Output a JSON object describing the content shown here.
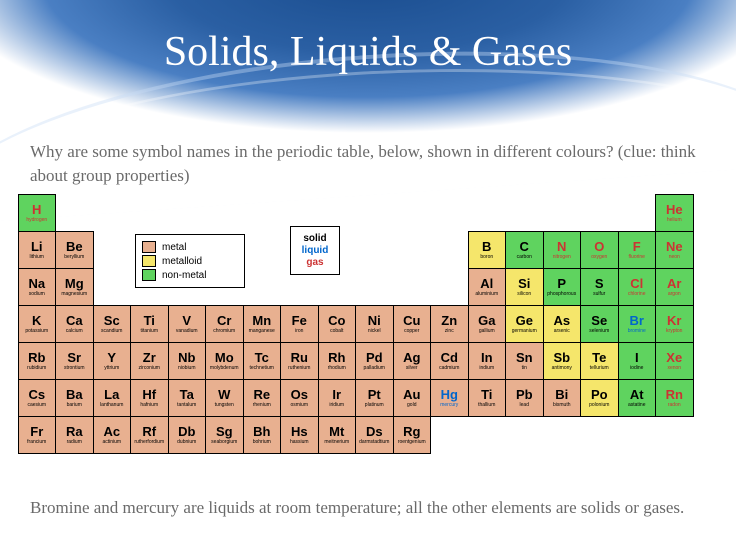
{
  "title": "Solids, Liquids & Gases",
  "question": "Why are some symbol names in the periodic table, below, shown in different colours? (clue: think about group properties)",
  "conclusion": "Bromine and mercury are liquids at room temperature; all the other elements are solids or gases.",
  "colors": {
    "metal": "#e8b090",
    "metalloid": "#f5e66b",
    "nonmetal": "#5fd35f",
    "solid": "#000000",
    "liquid": "#0066cc",
    "gas": "#cc3333",
    "header_bg": "#1a4d8f",
    "text": "#6a6a6a"
  },
  "legend_category": {
    "items": [
      {
        "color": "#e8b090",
        "label": "metal"
      },
      {
        "color": "#f5e66b",
        "label": "metalloid"
      },
      {
        "color": "#5fd35f",
        "label": "non-metal"
      }
    ]
  },
  "legend_state": {
    "items": [
      {
        "label": "solid",
        "color": "#000000"
      },
      {
        "label": "liquid",
        "color": "#0066cc"
      },
      {
        "label": "gas",
        "color": "#cc3333"
      }
    ]
  },
  "rows": [
    [
      {
        "sym": "H",
        "name": "hydrogen",
        "cat": "nonmetal",
        "state": "gas"
      },
      null,
      null,
      null,
      null,
      null,
      null,
      null,
      null,
      null,
      null,
      null,
      null,
      null,
      null,
      null,
      null,
      {
        "sym": "He",
        "name": "helium",
        "cat": "nonmetal",
        "state": "gas"
      }
    ],
    [
      {
        "sym": "Li",
        "name": "lithium",
        "cat": "metal",
        "state": "solid"
      },
      {
        "sym": "Be",
        "name": "beryllium",
        "cat": "metal",
        "state": "solid"
      },
      null,
      null,
      null,
      null,
      null,
      null,
      null,
      null,
      null,
      null,
      {
        "sym": "B",
        "name": "boron",
        "cat": "metalloid",
        "state": "solid"
      },
      {
        "sym": "C",
        "name": "carbon",
        "cat": "nonmetal",
        "state": "solid"
      },
      {
        "sym": "N",
        "name": "nitrogen",
        "cat": "nonmetal",
        "state": "gas"
      },
      {
        "sym": "O",
        "name": "oxygen",
        "cat": "nonmetal",
        "state": "gas"
      },
      {
        "sym": "F",
        "name": "fluorine",
        "cat": "nonmetal",
        "state": "gas"
      },
      {
        "sym": "Ne",
        "name": "neon",
        "cat": "nonmetal",
        "state": "gas"
      }
    ],
    [
      {
        "sym": "Na",
        "name": "sodium",
        "cat": "metal",
        "state": "solid"
      },
      {
        "sym": "Mg",
        "name": "magnesium",
        "cat": "metal",
        "state": "solid"
      },
      null,
      null,
      null,
      null,
      null,
      null,
      null,
      null,
      null,
      null,
      {
        "sym": "Al",
        "name": "aluminium",
        "cat": "metal",
        "state": "solid"
      },
      {
        "sym": "Si",
        "name": "silicon",
        "cat": "metalloid",
        "state": "solid"
      },
      {
        "sym": "P",
        "name": "phosphorous",
        "cat": "nonmetal",
        "state": "solid"
      },
      {
        "sym": "S",
        "name": "sulfur",
        "cat": "nonmetal",
        "state": "solid"
      },
      {
        "sym": "Cl",
        "name": "chlorine",
        "cat": "nonmetal",
        "state": "gas"
      },
      {
        "sym": "Ar",
        "name": "argon",
        "cat": "nonmetal",
        "state": "gas"
      }
    ],
    [
      {
        "sym": "K",
        "name": "potassium",
        "cat": "metal",
        "state": "solid"
      },
      {
        "sym": "Ca",
        "name": "calcium",
        "cat": "metal",
        "state": "solid"
      },
      {
        "sym": "Sc",
        "name": "scandium",
        "cat": "metal",
        "state": "solid"
      },
      {
        "sym": "Ti",
        "name": "titanium",
        "cat": "metal",
        "state": "solid"
      },
      {
        "sym": "V",
        "name": "vanadium",
        "cat": "metal",
        "state": "solid"
      },
      {
        "sym": "Cr",
        "name": "chromium",
        "cat": "metal",
        "state": "solid"
      },
      {
        "sym": "Mn",
        "name": "manganese",
        "cat": "metal",
        "state": "solid"
      },
      {
        "sym": "Fe",
        "name": "iron",
        "cat": "metal",
        "state": "solid"
      },
      {
        "sym": "Co",
        "name": "cobalt",
        "cat": "metal",
        "state": "solid"
      },
      {
        "sym": "Ni",
        "name": "nickel",
        "cat": "metal",
        "state": "solid"
      },
      {
        "sym": "Cu",
        "name": "copper",
        "cat": "metal",
        "state": "solid"
      },
      {
        "sym": "Zn",
        "name": "zinc",
        "cat": "metal",
        "state": "solid"
      },
      {
        "sym": "Ga",
        "name": "gallium",
        "cat": "metal",
        "state": "solid"
      },
      {
        "sym": "Ge",
        "name": "germanium",
        "cat": "metalloid",
        "state": "solid"
      },
      {
        "sym": "As",
        "name": "arsenic",
        "cat": "metalloid",
        "state": "solid"
      },
      {
        "sym": "Se",
        "name": "selenium",
        "cat": "nonmetal",
        "state": "solid"
      },
      {
        "sym": "Br",
        "name": "bromine",
        "cat": "nonmetal",
        "state": "liquid"
      },
      {
        "sym": "Kr",
        "name": "krypton",
        "cat": "nonmetal",
        "state": "gas"
      }
    ],
    [
      {
        "sym": "Rb",
        "name": "rubidium",
        "cat": "metal",
        "state": "solid"
      },
      {
        "sym": "Sr",
        "name": "strontium",
        "cat": "metal",
        "state": "solid"
      },
      {
        "sym": "Y",
        "name": "yttrium",
        "cat": "metal",
        "state": "solid"
      },
      {
        "sym": "Zr",
        "name": "zirconium",
        "cat": "metal",
        "state": "solid"
      },
      {
        "sym": "Nb",
        "name": "niobium",
        "cat": "metal",
        "state": "solid"
      },
      {
        "sym": "Mo",
        "name": "molybdenum",
        "cat": "metal",
        "state": "solid"
      },
      {
        "sym": "Tc",
        "name": "technetium",
        "cat": "metal",
        "state": "solid"
      },
      {
        "sym": "Ru",
        "name": "ruthenium",
        "cat": "metal",
        "state": "solid"
      },
      {
        "sym": "Rh",
        "name": "rhodium",
        "cat": "metal",
        "state": "solid"
      },
      {
        "sym": "Pd",
        "name": "palladium",
        "cat": "metal",
        "state": "solid"
      },
      {
        "sym": "Ag",
        "name": "silver",
        "cat": "metal",
        "state": "solid"
      },
      {
        "sym": "Cd",
        "name": "cadmium",
        "cat": "metal",
        "state": "solid"
      },
      {
        "sym": "In",
        "name": "indium",
        "cat": "metal",
        "state": "solid"
      },
      {
        "sym": "Sn",
        "name": "tin",
        "cat": "metal",
        "state": "solid"
      },
      {
        "sym": "Sb",
        "name": "antimony",
        "cat": "metalloid",
        "state": "solid"
      },
      {
        "sym": "Te",
        "name": "tellurium",
        "cat": "metalloid",
        "state": "solid"
      },
      {
        "sym": "I",
        "name": "iodine",
        "cat": "nonmetal",
        "state": "solid"
      },
      {
        "sym": "Xe",
        "name": "xenon",
        "cat": "nonmetal",
        "state": "gas"
      }
    ],
    [
      {
        "sym": "Cs",
        "name": "caesium",
        "cat": "metal",
        "state": "solid"
      },
      {
        "sym": "Ba",
        "name": "barium",
        "cat": "metal",
        "state": "solid"
      },
      {
        "sym": "La",
        "name": "lanthanum",
        "cat": "metal",
        "state": "solid"
      },
      {
        "sym": "Hf",
        "name": "hafnium",
        "cat": "metal",
        "state": "solid"
      },
      {
        "sym": "Ta",
        "name": "tantalum",
        "cat": "metal",
        "state": "solid"
      },
      {
        "sym": "W",
        "name": "tungsten",
        "cat": "metal",
        "state": "solid"
      },
      {
        "sym": "Re",
        "name": "rhenium",
        "cat": "metal",
        "state": "solid"
      },
      {
        "sym": "Os",
        "name": "osmium",
        "cat": "metal",
        "state": "solid"
      },
      {
        "sym": "Ir",
        "name": "iridium",
        "cat": "metal",
        "state": "solid"
      },
      {
        "sym": "Pt",
        "name": "platinum",
        "cat": "metal",
        "state": "solid"
      },
      {
        "sym": "Au",
        "name": "gold",
        "cat": "metal",
        "state": "solid"
      },
      {
        "sym": "Hg",
        "name": "mercury",
        "cat": "metal",
        "state": "liquid"
      },
      {
        "sym": "Ti",
        "name": "thallium",
        "cat": "metal",
        "state": "solid"
      },
      {
        "sym": "Pb",
        "name": "lead",
        "cat": "metal",
        "state": "solid"
      },
      {
        "sym": "Bi",
        "name": "bismuth",
        "cat": "metal",
        "state": "solid"
      },
      {
        "sym": "Po",
        "name": "polonium",
        "cat": "metalloid",
        "state": "solid"
      },
      {
        "sym": "At",
        "name": "astatine",
        "cat": "nonmetal",
        "state": "solid"
      },
      {
        "sym": "Rn",
        "name": "radon",
        "cat": "nonmetal",
        "state": "gas"
      }
    ],
    [
      {
        "sym": "Fr",
        "name": "francium",
        "cat": "metal",
        "state": "solid"
      },
      {
        "sym": "Ra",
        "name": "radium",
        "cat": "metal",
        "state": "solid"
      },
      {
        "sym": "Ac",
        "name": "actinium",
        "cat": "metal",
        "state": "solid"
      },
      {
        "sym": "Rf",
        "name": "rutherfordium",
        "cat": "metal",
        "state": "solid"
      },
      {
        "sym": "Db",
        "name": "dubnium",
        "cat": "metal",
        "state": "solid"
      },
      {
        "sym": "Sg",
        "name": "seaborgium",
        "cat": "metal",
        "state": "solid"
      },
      {
        "sym": "Bh",
        "name": "bohrium",
        "cat": "metal",
        "state": "solid"
      },
      {
        "sym": "Hs",
        "name": "hassium",
        "cat": "metal",
        "state": "solid"
      },
      {
        "sym": "Mt",
        "name": "meitnerium",
        "cat": "metal",
        "state": "solid"
      },
      {
        "sym": "Ds",
        "name": "darmstadtium",
        "cat": "metal",
        "state": "solid"
      },
      {
        "sym": "Rg",
        "name": "roentgenium",
        "cat": "metal",
        "state": "solid"
      },
      null,
      null,
      null,
      null,
      null,
      null,
      null
    ]
  ]
}
